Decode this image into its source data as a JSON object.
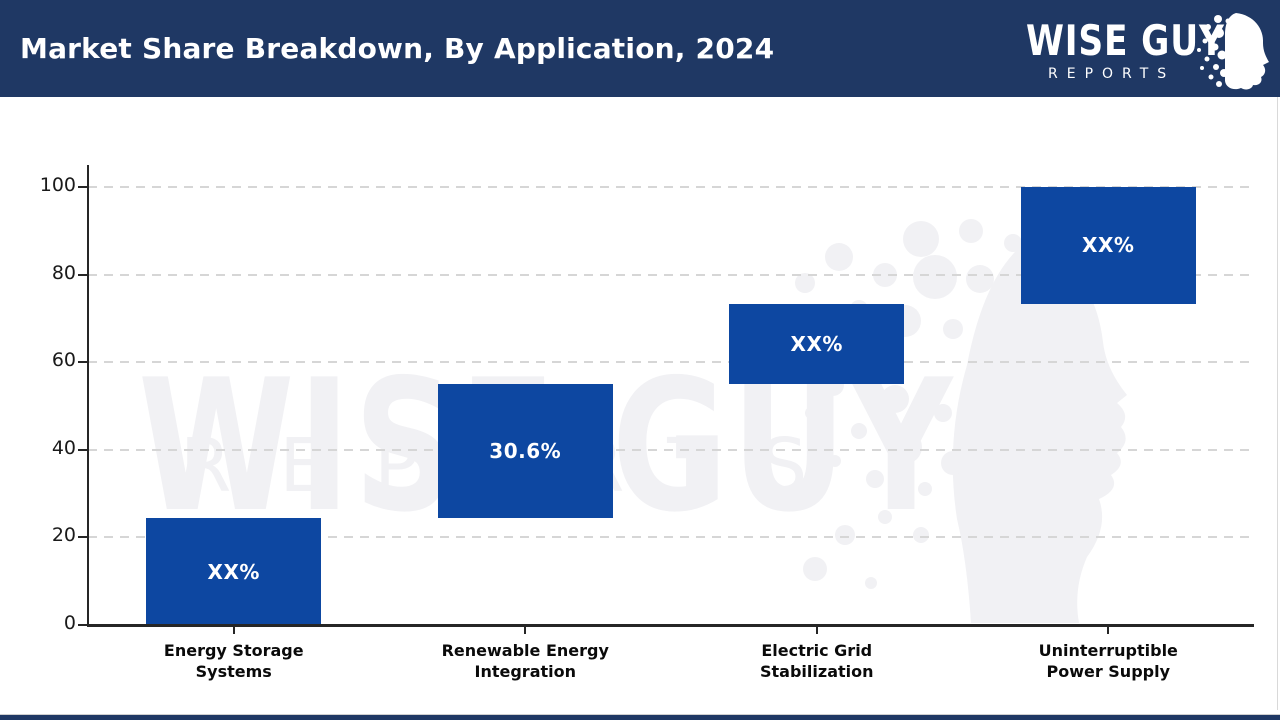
{
  "header": {
    "title": "Market Share Breakdown, By Application, 2024",
    "logo": {
      "line1": "WISE GUY",
      "line2": "REPORTS"
    }
  },
  "watermark": {
    "line1": "WISE GUY",
    "line2": "REPORTS"
  },
  "chart_data": {
    "type": "bar",
    "subtype": "waterfall-range",
    "title": "Market Share Breakdown, By Application, 2024",
    "categories": [
      "Energy Storage\nSystems",
      "Renewable Energy\nIntegration",
      "Electric Grid\nStabilization",
      "Uninterruptible\nPower Supply"
    ],
    "segments": [
      {
        "start": 0,
        "end": 24.4,
        "label": "XX%"
      },
      {
        "start": 24.4,
        "end": 55.0,
        "label": "30.6%"
      },
      {
        "start": 55.0,
        "end": 73.4,
        "label": "XX%"
      },
      {
        "start": 73.4,
        "end": 100,
        "label": "XX%"
      }
    ],
    "ylim": [
      0,
      100
    ],
    "yticks": [
      0,
      20,
      40,
      60,
      80,
      100
    ],
    "xlabel": "",
    "ylabel": "",
    "grid": "horizontal-dashed",
    "legend": "none",
    "bar_color": "#0d47a1",
    "bar_label_color": "#ffffff",
    "axis_color": "#262626",
    "gridline_color": "#d6d6d6"
  },
  "colors": {
    "header_bg": "#1f3864",
    "footer_bg": "#1f3864",
    "watermark": "#f1f1f4",
    "page_bg": "#ffffff"
  }
}
